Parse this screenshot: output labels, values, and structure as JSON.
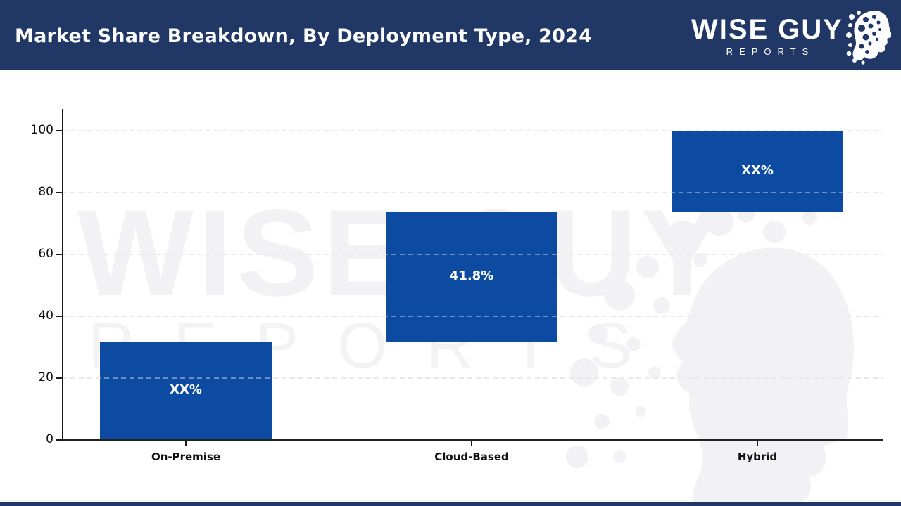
{
  "header": {
    "title": "Market Share Breakdown, By Deployment Type, 2024",
    "logo": {
      "line1": "WISE GUY",
      "line2": "REPORTS"
    }
  },
  "watermark": {
    "line1": "WISE GUY",
    "line2": "REPORTS"
  },
  "colors": {
    "header_bg": "#213866",
    "bar": "#0d4aa2",
    "grid": "#dcdcdc",
    "axis": "#1a1a1a",
    "watermark": "#f2f2f4"
  },
  "chart_data": {
    "type": "bar",
    "subtype": "floating-waterfall",
    "title": "Market Share Breakdown, By Deployment Type, 2024",
    "xlabel": "",
    "ylabel": "",
    "ylim": [
      0,
      100
    ],
    "yticks": [
      0,
      20,
      40,
      60,
      80,
      100
    ],
    "grid": "dashed-horizontal",
    "legend": "none",
    "categories": [
      "On-Premise",
      "Cloud-Based",
      "Hybrid"
    ],
    "segments": [
      {
        "category": "On-Premise",
        "start": 0,
        "end": 31.9,
        "value": 31.9,
        "label": "XX%"
      },
      {
        "category": "Cloud-Based",
        "start": 31.9,
        "end": 73.7,
        "value": 41.8,
        "label": "41.8%"
      },
      {
        "category": "Hybrid",
        "start": 73.7,
        "end": 100,
        "value": 26.3,
        "label": "XX%"
      }
    ]
  }
}
